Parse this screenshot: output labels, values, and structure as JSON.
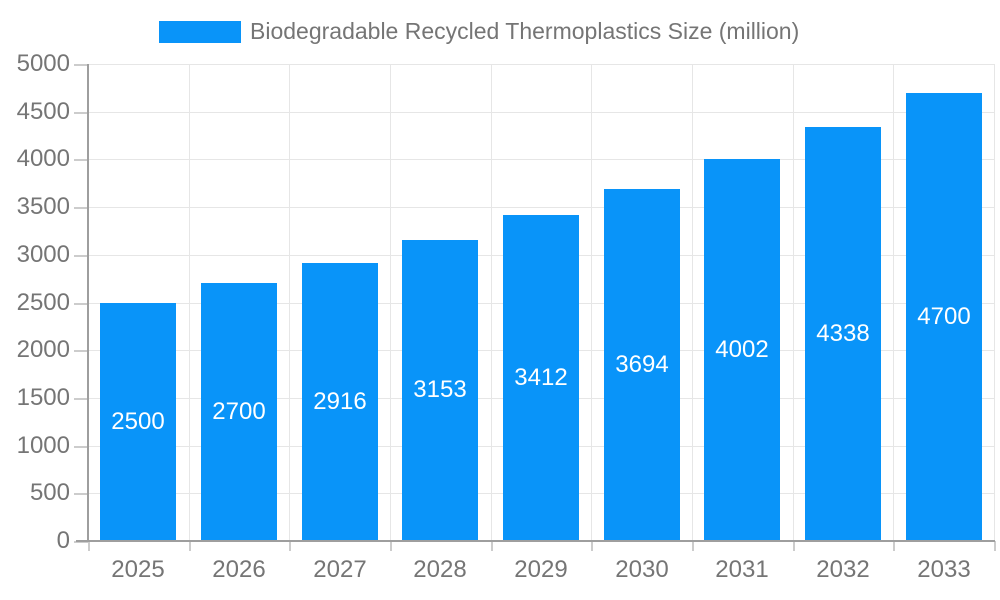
{
  "chart_data": {
    "type": "bar",
    "title": "",
    "categories": [
      "2025",
      "2026",
      "2027",
      "2028",
      "2029",
      "2030",
      "2031",
      "2032",
      "2033"
    ],
    "series": [
      {
        "name": "Biodegradable Recycled Thermoplastics Size (million)",
        "values": [
          2500,
          2700,
          2916,
          3153,
          3412,
          3694,
          4002,
          4338,
          4700
        ]
      }
    ],
    "xlabel": "",
    "ylabel": "",
    "ylim": [
      0,
      5000
    ],
    "ytick_step": 500,
    "grid": true,
    "legend_position": "top",
    "value_labels": "inside-center"
  },
  "colors": {
    "bar": "#0994f9",
    "value_label": "#ffffff",
    "axis_text": "#757575",
    "legend_text": "#757575",
    "gridline": "#e6e6e6",
    "tick": "#cccccc",
    "axis_line": "#9e9e9e",
    "background": "#ffffff"
  }
}
